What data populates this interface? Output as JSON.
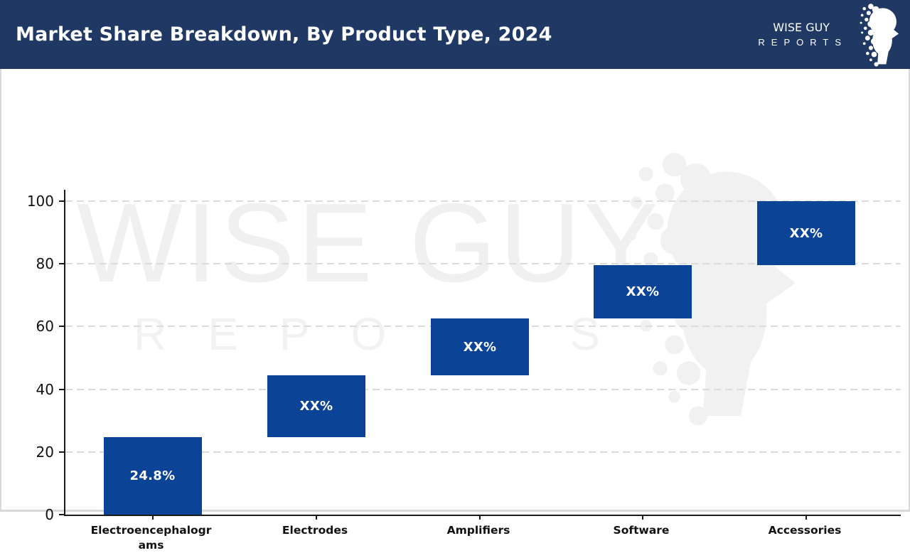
{
  "header": {
    "title": "Market Share Breakdown, By Product Type, 2024",
    "logo": {
      "wordmark": "WISE GUY",
      "subtext": "REPORTS"
    }
  },
  "watermark": {
    "line1": "WISE GUY",
    "line2": "REPORTS"
  },
  "chart_data": {
    "type": "bar",
    "variant": "waterfall",
    "title": "Market Share Breakdown, By Product Type, 2024",
    "categories": [
      "Electroencephalograms",
      "Electrodes",
      "Amplifiers",
      "Software",
      "Accessories"
    ],
    "category_display": [
      "Electroencephalogr\nams",
      "Electrodes",
      "Amplifiers",
      "Software",
      "Accessories"
    ],
    "segments": [
      {
        "category": "Electroencephalograms",
        "start": 0,
        "end": 24.8,
        "label": "24.8%"
      },
      {
        "category": "Electrodes",
        "start": 24.8,
        "end": 44.5,
        "label": "XX%"
      },
      {
        "category": "Amplifiers",
        "start": 44.5,
        "end": 62.5,
        "label": "XX%"
      },
      {
        "category": "Software",
        "start": 62.5,
        "end": 79.5,
        "label": "XX%"
      },
      {
        "category": "Accessories",
        "start": 79.5,
        "end": 100,
        "label": "XX%"
      }
    ],
    "ylim": [
      0,
      100
    ],
    "y_ticks": [
      0,
      20,
      40,
      60,
      80,
      100
    ],
    "grid": "horizontal-dashed",
    "legend": "none",
    "bar_color": "#0b4397",
    "bar_label_color": "#ffffff",
    "header_color": "#1f3864",
    "gridline_color": "#dcdcdc",
    "axis_color": "#1a1a1a"
  }
}
